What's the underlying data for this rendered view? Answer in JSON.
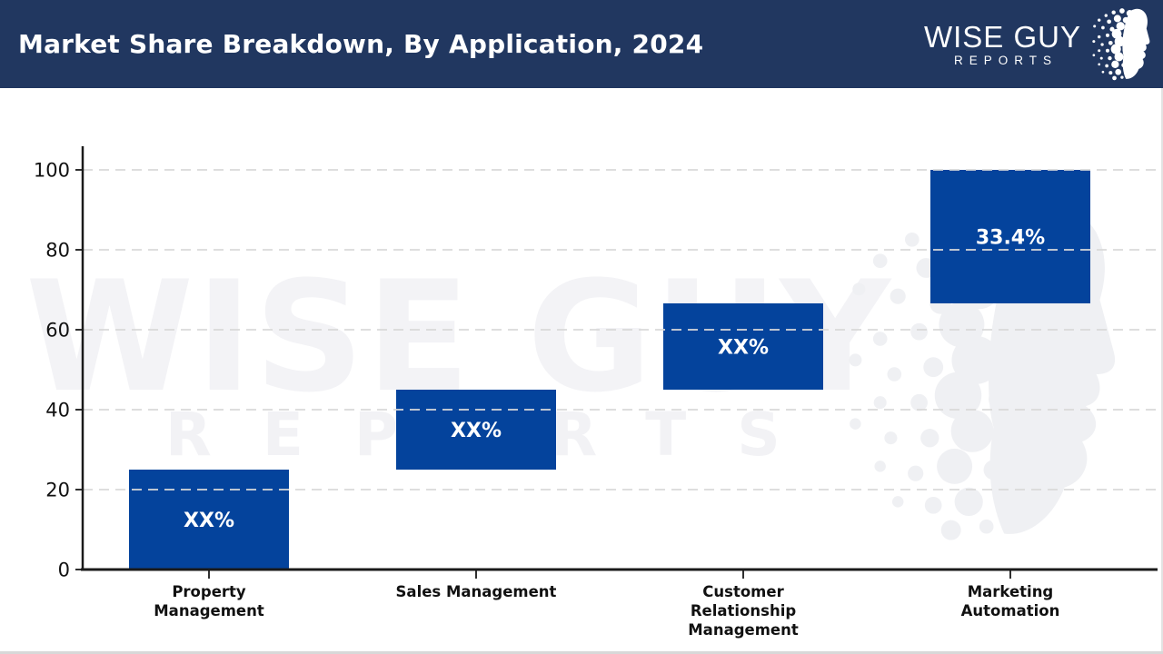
{
  "header": {
    "title": "Market Share Breakdown, By Application, 2024",
    "bg_color": "#213760",
    "logo": {
      "name": "WISE GUY",
      "tagline": "REPORTS"
    }
  },
  "watermark": {
    "name": "WISE GUY",
    "tagline": "REPORTS"
  },
  "chart_data": {
    "type": "bar",
    "subtype": "waterfall",
    "title": "Market Share Breakdown, By Application, 2024",
    "categories": [
      "Property\nManagement",
      "Sales Management",
      "Customer\nRelationship\nManagement",
      "Marketing\nAutomation"
    ],
    "segments": [
      {
        "category": "Property Management",
        "start": 0,
        "end": 25,
        "value": 25,
        "label": "XX%"
      },
      {
        "category": "Sales Management",
        "start": 25,
        "end": 45,
        "value": 20,
        "label": "XX%"
      },
      {
        "category": "Customer Relationship Management",
        "start": 45,
        "end": 66.6,
        "value": 21.6,
        "label": "XX%"
      },
      {
        "category": "Marketing Automation",
        "start": 66.6,
        "end": 100,
        "value": 33.4,
        "label": "33.4%"
      }
    ],
    "ylim": [
      0,
      100
    ],
    "yticks": [
      0,
      20,
      40,
      60,
      80,
      100
    ],
    "xlabel": "",
    "ylabel": "",
    "legend": "none",
    "grid": "horizontal-dashed",
    "grid_color": "#d9d9d9",
    "axis_color": "#1a1a1a",
    "bar_color": "#04439c",
    "bar_label_color": "#ffffff"
  }
}
